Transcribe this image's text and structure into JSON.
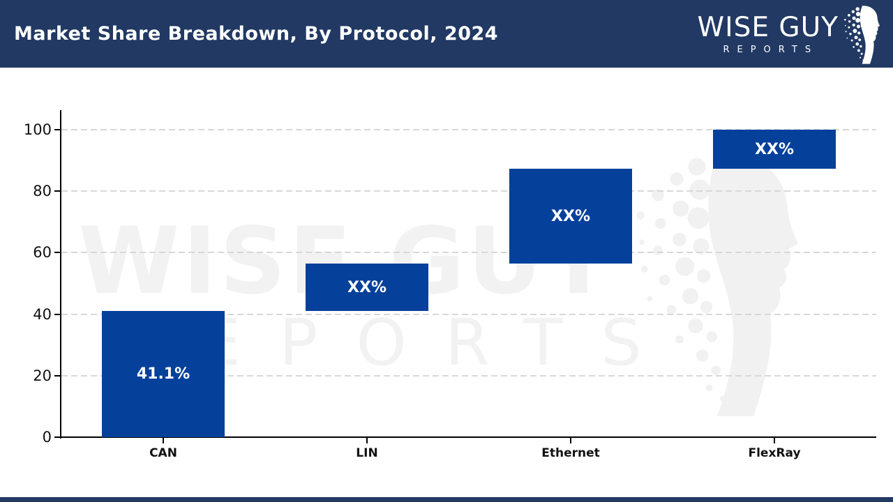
{
  "header": {
    "title": "Market Share Breakdown, By Protocol, 2024",
    "logo": {
      "line1": "WISE GUY",
      "line2": "REPORTS"
    }
  },
  "watermark": {
    "line1": "WISE GUY",
    "line2": "REPORTS"
  },
  "chart_data": {
    "type": "bar",
    "subtype": "waterfall",
    "title": "Market Share Breakdown, By Protocol, 2024",
    "categories": [
      "CAN",
      "LIN",
      "Ethernet",
      "FlexRay"
    ],
    "segments": [
      {
        "category": "CAN",
        "start": 0,
        "end": 41.1,
        "label": "41.1%"
      },
      {
        "category": "LIN",
        "start": 41.1,
        "end": 56.4,
        "label": "XX%"
      },
      {
        "category": "Ethernet",
        "start": 56.4,
        "end": 87.2,
        "label": "XX%"
      },
      {
        "category": "FlexRay",
        "start": 87.2,
        "end": 100,
        "label": "XX%"
      }
    ],
    "xlabel": "",
    "ylabel": "",
    "ylim": [
      0,
      100
    ],
    "yticks": [
      0,
      20,
      40,
      60,
      80,
      100
    ],
    "grid": "horizontal-dashed",
    "legend": "none"
  },
  "colors": {
    "header_bg": "#213963",
    "footer_bg": "#213963",
    "bar": "#05409b",
    "bar_label": "#ffffff",
    "grid": "#d8d8d8",
    "axis": "#000000",
    "watermark": "#f2f2f2"
  }
}
